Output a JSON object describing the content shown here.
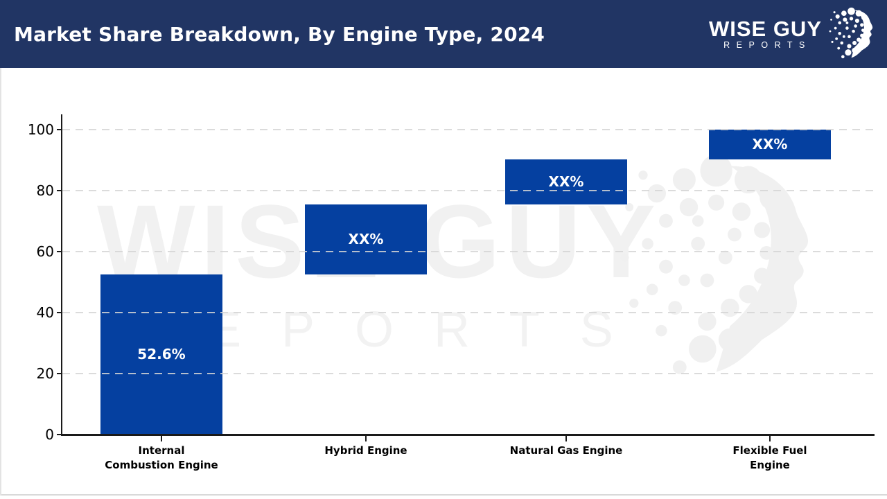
{
  "header": {
    "title": "Market Share Breakdown, By Engine Type, 2024",
    "logo": {
      "line1": "WISE GUY",
      "line2": "REPORTS"
    }
  },
  "watermark": {
    "line1": "WISE GUY",
    "line2": "REPORTS"
  },
  "colors": {
    "header_bg": "#213564",
    "bar": "#0540a0",
    "axis": "#1a1a1a",
    "gridline": "#d5d5d5",
    "bar_label": "#ffffff",
    "watermark": "#f1f1f1"
  },
  "chart_data": {
    "type": "bar",
    "subtype": "waterfall-stacked",
    "title": "Market Share Breakdown, By Engine Type, 2024",
    "categories": [
      "Internal Combustion Engine",
      "Hybrid Engine",
      "Natural Gas Engine",
      "Flexible Fuel Engine"
    ],
    "category_lines": [
      [
        "Internal",
        "Combustion Engine"
      ],
      [
        "Hybrid Engine"
      ],
      [
        "Natural Gas Engine"
      ],
      [
        "Flexible Fuel",
        "Engine"
      ]
    ],
    "series": [
      {
        "name": "Market share (%)",
        "segments": [
          {
            "category": "Internal Combustion Engine",
            "start": 0,
            "end": 52.6,
            "label": "52.6%"
          },
          {
            "category": "Hybrid Engine",
            "start": 52.6,
            "end": 75.5,
            "label": "XX%"
          },
          {
            "category": "Natural Gas Engine",
            "start": 75.5,
            "end": 90.3,
            "label": "XX%"
          },
          {
            "category": "Flexible Fuel Engine",
            "start": 90.3,
            "end": 100,
            "label": "XX%"
          }
        ]
      }
    ],
    "xlabel": "",
    "ylabel": "",
    "ylim": [
      0,
      100
    ],
    "yticks": [
      0,
      20,
      40,
      60,
      80,
      100
    ],
    "grid": "horizontal-dashed",
    "legend": "none"
  }
}
